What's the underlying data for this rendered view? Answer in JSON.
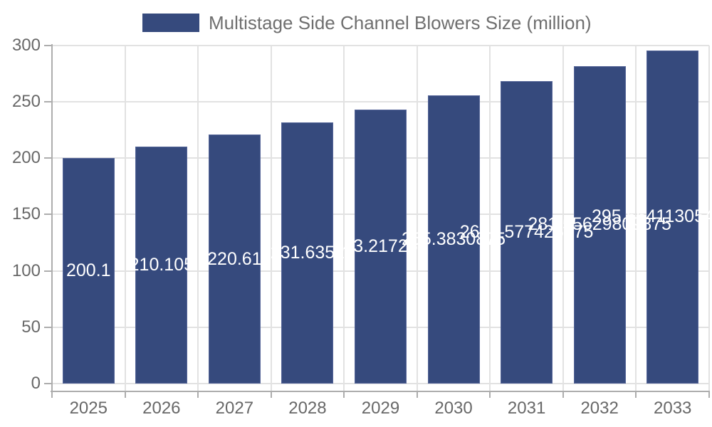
{
  "legend": {
    "label": "Multistage Side Channel Blowers Size (million)"
  },
  "y_axis": {
    "tick_labels": [
      "0",
      "50",
      "100",
      "150",
      "200",
      "250",
      "300"
    ],
    "tick_values": [
      0,
      50,
      100,
      150,
      200,
      250,
      300
    ]
  },
  "colors": {
    "bar": "#364A7D",
    "bar_edge": "#566699",
    "grid": "#e2e2e2",
    "axis": "#adadad",
    "tick_text": "#686868",
    "legend_text": "#6f6f6f",
    "bar_label_text": "#ffffff"
  },
  "chart_data": {
    "type": "bar",
    "series_name": "Multistage Side Channel Blowers Size (million)",
    "categories": [
      "2025",
      "2026",
      "2027",
      "2028",
      "2029",
      "2030",
      "2031",
      "2032",
      "2033"
    ],
    "values": [
      200.1,
      210.105,
      220.61,
      231.6352,
      243.217256,
      255.3830875,
      268.1577425375,
      281.55629809875,
      295.5641130546875
    ],
    "labels": [
      "200.1",
      "210.105",
      "220.61",
      "231.6352",
      "243.217256",
      "255.3830875",
      "268.1577425375",
      "281.55629809875",
      "295.5641130546875"
    ],
    "xlabel": "",
    "ylabel": "",
    "ylim": [
      0,
      300
    ],
    "y_ticks": [
      0,
      50,
      100,
      150,
      200,
      250,
      300
    ],
    "grid": true,
    "legend_position": "top",
    "bar_color": "#364A7D",
    "label_position": "middle-of-bar",
    "label_color": "#ffffff"
  }
}
